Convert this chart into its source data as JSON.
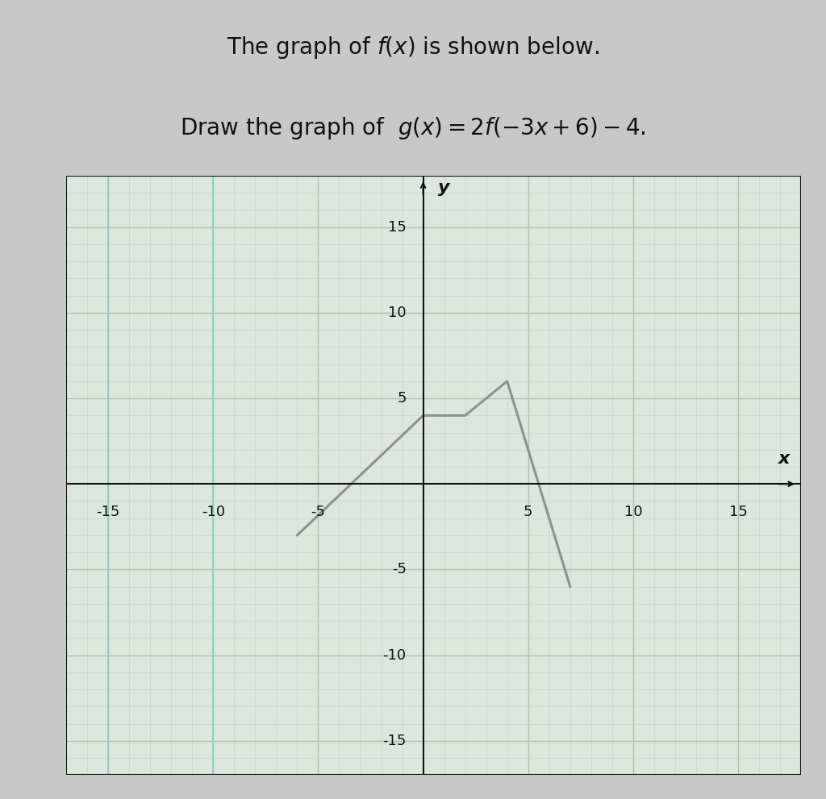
{
  "title_line1": "The graph of $f(x)$ is shown below.",
  "title_line2": "Draw the graph of  $g(x)=2f(-3x+6)-4$.",
  "xlim": [
    -17,
    18
  ],
  "ylim": [
    -17,
    18
  ],
  "xticks": [
    -15,
    -10,
    -5,
    5,
    10,
    15
  ],
  "yticks": [
    -15,
    -10,
    -5,
    5,
    10,
    15
  ],
  "graph_points": [
    [
      -6,
      -3
    ],
    [
      0,
      4
    ],
    [
      2,
      4
    ],
    [
      4,
      6
    ],
    [
      7,
      -6
    ]
  ],
  "line_color": "#909090",
  "line_width": 2.2,
  "plot_bg_color": "#dde8dd",
  "grid_major_color": "#aac4aa",
  "grid_minor_color": "#c8d8c8",
  "teal_line_color": "#88cccc",
  "axis_color": "#111111",
  "border_color": "#111111",
  "text_color": "#111111",
  "title_fontsize": 20,
  "tick_fontsize": 13,
  "fig_bg_color": "#c8c8c8",
  "title_bg_color": "#d0d0d0"
}
